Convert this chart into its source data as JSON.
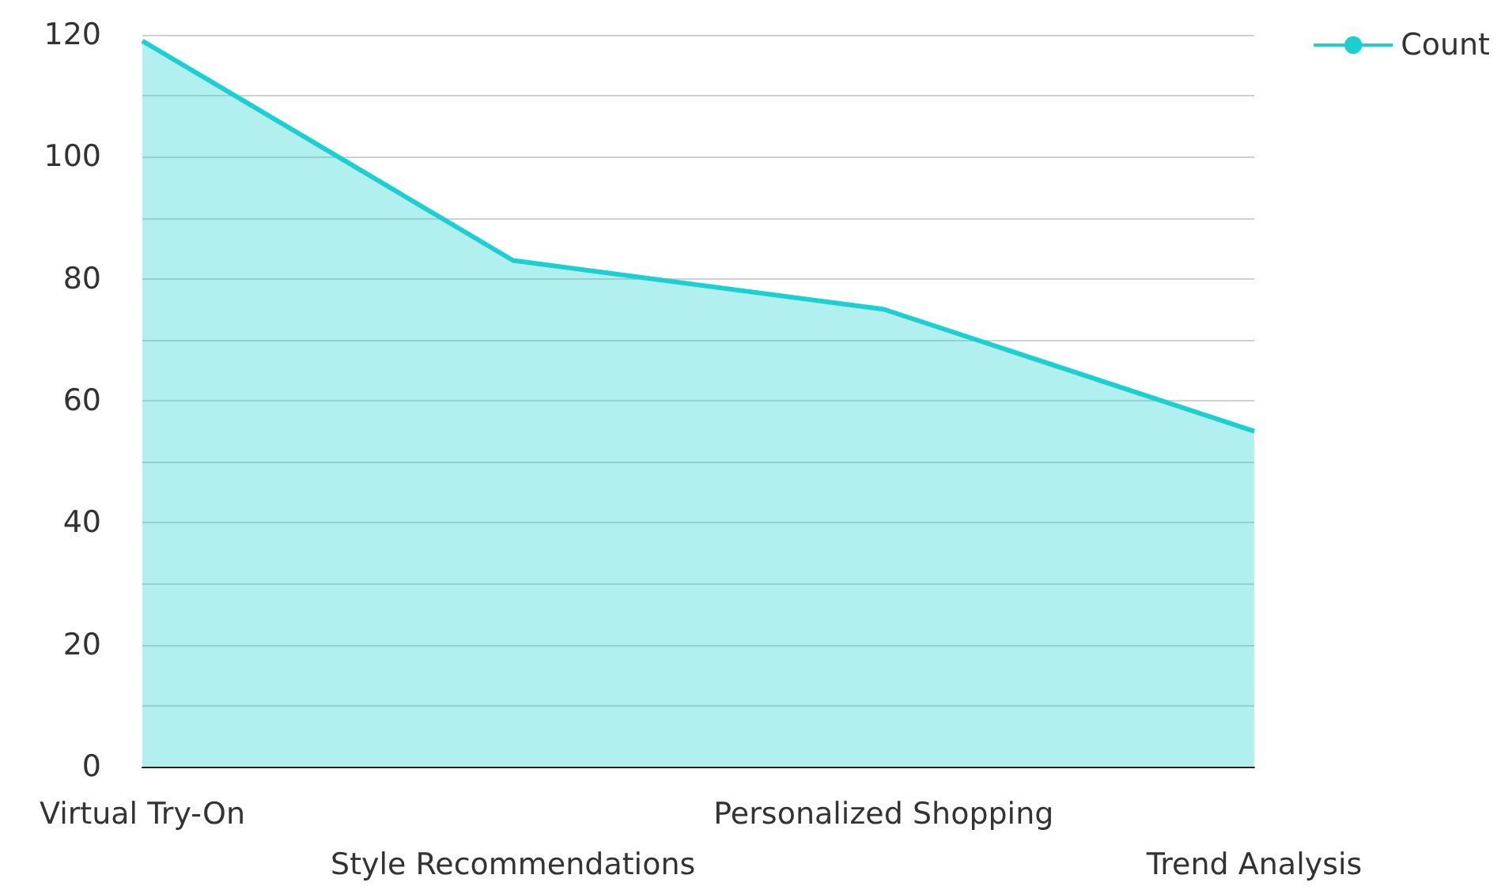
{
  "chart_data": {
    "type": "area",
    "categories": [
      "Virtual Try-On",
      "Style Recommendations",
      "Personalized Shopping",
      "Trend Analysis"
    ],
    "series": [
      {
        "name": "Count",
        "color": "#1ccfd0",
        "values": [
          119,
          83,
          75,
          55
        ]
      }
    ],
    "ylim": [
      0,
      120
    ],
    "yticks": [
      0,
      {
        "value": 10,
        "label": null
      },
      20,
      {
        "value": 30,
        "label": null
      },
      40,
      {
        "value": 50,
        "label": null
      },
      60,
      {
        "value": 70,
        "label": null
      },
      80,
      {
        "value": 90,
        "label": null
      },
      100,
      {
        "value": 110,
        "label": null
      },
      120
    ],
    "grid": true,
    "legend": "top right"
  }
}
